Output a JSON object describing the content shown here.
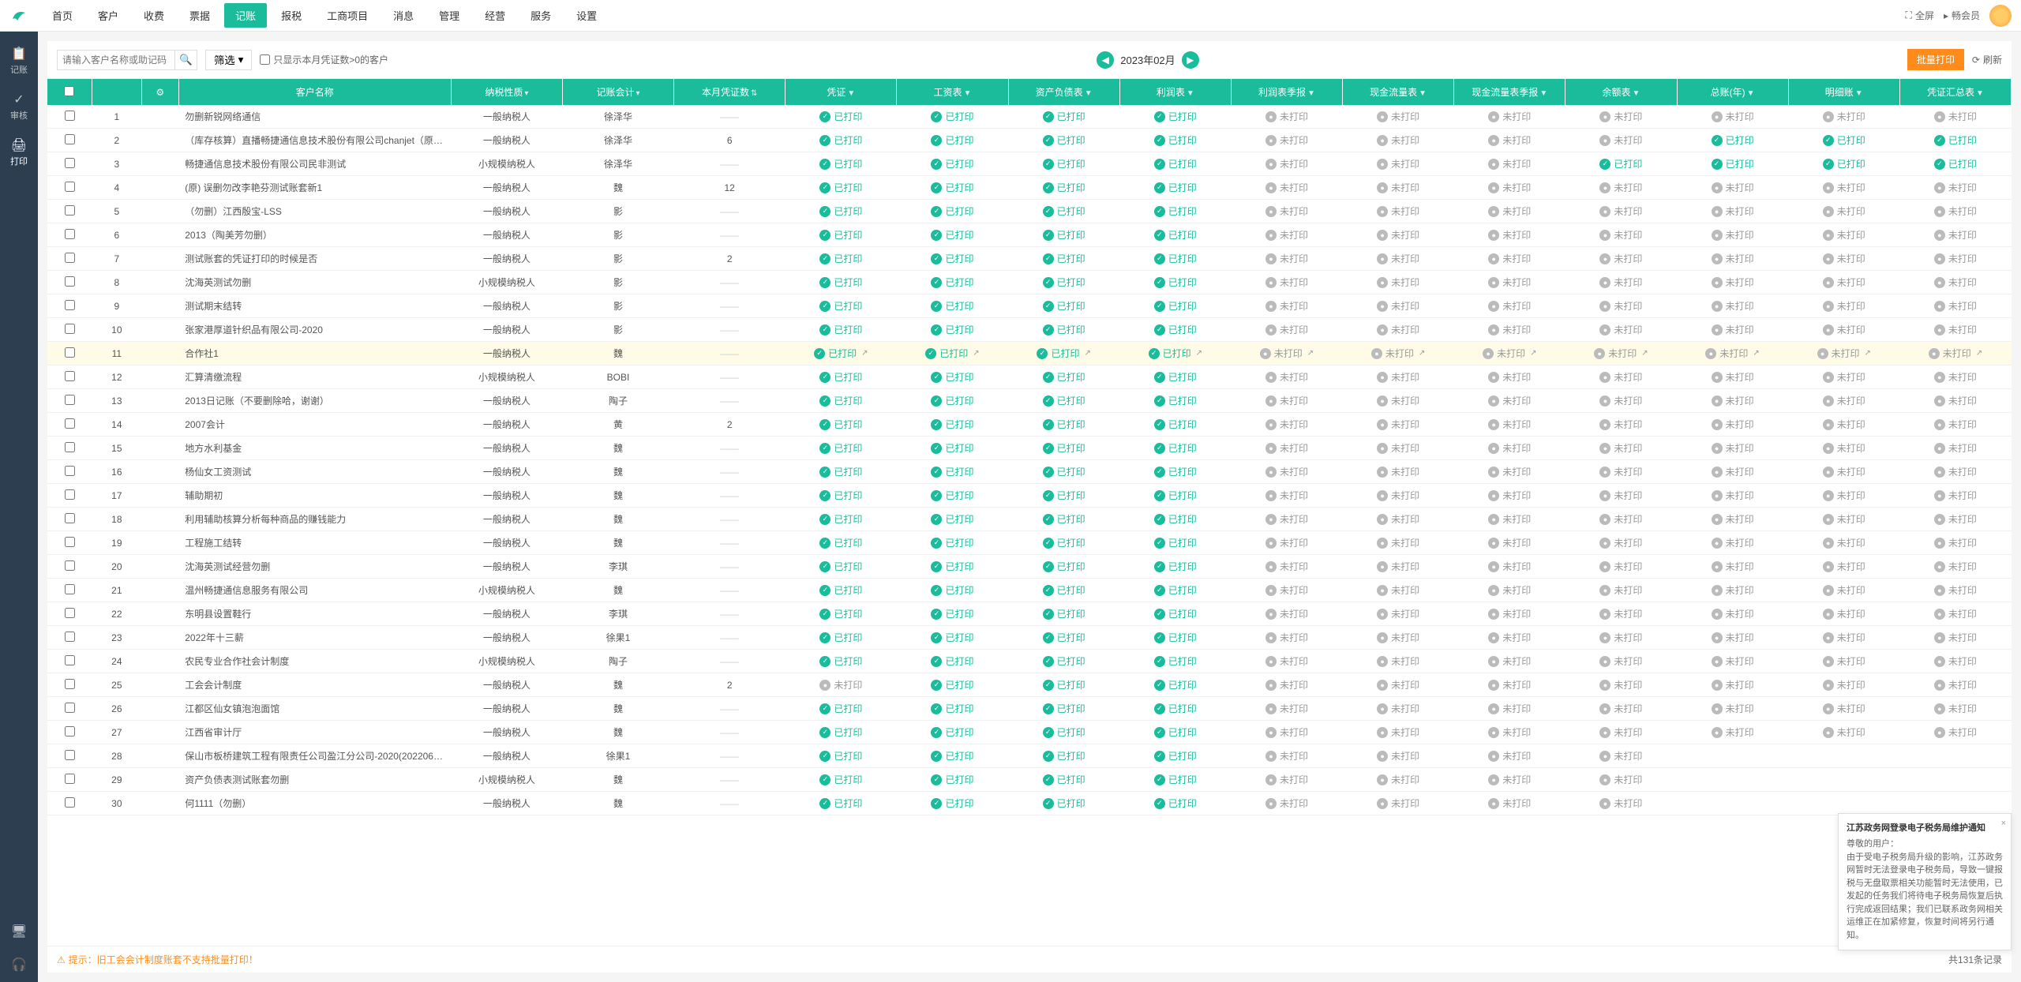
{
  "topnav": {
    "items": [
      "首页",
      "客户",
      "收费",
      "票据",
      "记账",
      "报税",
      "工商项目",
      "消息",
      "管理",
      "经营",
      "服务",
      "设置"
    ],
    "active_index": 4,
    "right": {
      "fullscreen": "全屏",
      "member": "畅会员"
    }
  },
  "sidebar": {
    "items": [
      {
        "icon": "📋",
        "label": "记账"
      },
      {
        "icon": "✓",
        "label": "审核"
      },
      {
        "icon": "🖨",
        "label": "打印"
      }
    ],
    "bottom": [
      {
        "icon": "🖥",
        "label": ""
      },
      {
        "icon": "🎧",
        "label": ""
      }
    ],
    "active_index": 2
  },
  "toolbar": {
    "search_placeholder": "请输入客户名称或助记码",
    "filter_label": "筛选",
    "checkbox_label": "只显示本月凭证数>0的客户",
    "date_label": "2023年02月",
    "batch_print": "批量打印",
    "refresh": "刷新"
  },
  "table": {
    "headers": [
      "",
      "",
      "",
      "客户名称",
      "纳税性质",
      "记账会计",
      "本月凭证数",
      "凭证",
      "工资表",
      "资产负债表",
      "利润表",
      "利润表季报",
      "现金流量表",
      "现金流量表季报",
      "余额表",
      "总账(年)",
      "明细账",
      "凭证汇总表"
    ],
    "status_labels": {
      "printed": "已打印",
      "unprinted": "未打印"
    },
    "rows": [
      {
        "idx": 1,
        "name": "勿删新锐网络通信",
        "tax": "一般纳税人",
        "acct": "徐泽华",
        "vcount": "",
        "statuses": [
          "p",
          "p",
          "p",
          "p",
          "u",
          "u",
          "u",
          "u",
          "u",
          "u",
          "u"
        ]
      },
      {
        "idx": 2,
        "name": "（库存核算）直播畅捷通信息技术股份有限公司chanjet（原…",
        "tax": "一般纳税人",
        "acct": "徐泽华",
        "vcount": "6",
        "statuses": [
          "p",
          "p",
          "p",
          "p",
          "u",
          "u",
          "u",
          "u",
          "p",
          "p",
          "p"
        ]
      },
      {
        "idx": 3,
        "name": "畅捷通信息技术股份有限公司民非测试",
        "tax": "小规模纳税人",
        "acct": "徐泽华",
        "vcount": "",
        "statuses": [
          "p",
          "p",
          "p",
          "p",
          "u",
          "u",
          "u",
          "p",
          "p",
          "p",
          "p"
        ]
      },
      {
        "idx": 4,
        "name": "(原) 误删勿改李艳芬测试账套新1",
        "tax": "一般纳税人",
        "acct": "魏",
        "vcount": "12",
        "statuses": [
          "p",
          "p",
          "p",
          "p",
          "u",
          "u",
          "u",
          "u",
          "u",
          "u",
          "u"
        ]
      },
      {
        "idx": 5,
        "name": "（勿删）江西殷宝-LSS",
        "tax": "一般纳税人",
        "acct": "影",
        "vcount": "",
        "statuses": [
          "p",
          "p",
          "p",
          "p",
          "u",
          "u",
          "u",
          "u",
          "u",
          "u",
          "u"
        ]
      },
      {
        "idx": 6,
        "name": "2013（陶美芳勿删）",
        "tax": "一般纳税人",
        "acct": "影",
        "vcount": "",
        "statuses": [
          "p",
          "p",
          "p",
          "p",
          "u",
          "u",
          "u",
          "u",
          "u",
          "u",
          "u"
        ]
      },
      {
        "idx": 7,
        "name": "测试账套的凭证打印的时候是否",
        "tax": "一般纳税人",
        "acct": "影",
        "vcount": "2",
        "statuses": [
          "p",
          "p",
          "p",
          "p",
          "u",
          "u",
          "u",
          "u",
          "u",
          "u",
          "u"
        ]
      },
      {
        "idx": 8,
        "name": "沈海英测试勿删",
        "tax": "小规模纳税人",
        "acct": "影",
        "vcount": "",
        "statuses": [
          "p",
          "p",
          "p",
          "p",
          "u",
          "u",
          "u",
          "u",
          "u",
          "u",
          "u"
        ]
      },
      {
        "idx": 9,
        "name": "测试期末结转",
        "tax": "一般纳税人",
        "acct": "影",
        "vcount": "",
        "statuses": [
          "p",
          "p",
          "p",
          "p",
          "u",
          "u",
          "u",
          "u",
          "u",
          "u",
          "u"
        ]
      },
      {
        "idx": 10,
        "name": "张家港厚道针织品有限公司-2020",
        "tax": "一般纳税人",
        "acct": "影",
        "vcount": "",
        "statuses": [
          "p",
          "p",
          "p",
          "p",
          "u",
          "u",
          "u",
          "u",
          "u",
          "u",
          "u"
        ]
      },
      {
        "idx": 11,
        "name": "合作社1",
        "tax": "一般纳税人",
        "acct": "魏",
        "vcount": "",
        "statuses": [
          "p",
          "p",
          "p",
          "p",
          "u",
          "u",
          "u",
          "u",
          "u",
          "u",
          "u"
        ],
        "highlight": true,
        "ext": true
      },
      {
        "idx": 12,
        "name": "汇算清缴流程",
        "tax": "小规模纳税人",
        "acct": "BOBI",
        "vcount": "",
        "statuses": [
          "p",
          "p",
          "p",
          "p",
          "u",
          "u",
          "u",
          "u",
          "u",
          "u",
          "u"
        ]
      },
      {
        "idx": 13,
        "name": "2013日记账（不要删除哈，谢谢）",
        "tax": "一般纳税人",
        "acct": "陶子",
        "vcount": "",
        "statuses": [
          "p",
          "p",
          "p",
          "p",
          "u",
          "u",
          "u",
          "u",
          "u",
          "u",
          "u"
        ]
      },
      {
        "idx": 14,
        "name": "2007会计",
        "tax": "一般纳税人",
        "acct": "黄",
        "vcount": "2",
        "statuses": [
          "p",
          "p",
          "p",
          "p",
          "u",
          "u",
          "u",
          "u",
          "u",
          "u",
          "u"
        ]
      },
      {
        "idx": 15,
        "name": "地方水利基金",
        "tax": "一般纳税人",
        "acct": "魏",
        "vcount": "",
        "statuses": [
          "p",
          "p",
          "p",
          "p",
          "u",
          "u",
          "u",
          "u",
          "u",
          "u",
          "u"
        ]
      },
      {
        "idx": 16,
        "name": "杨仙女工资测试",
        "tax": "一般纳税人",
        "acct": "魏",
        "vcount": "",
        "statuses": [
          "p",
          "p",
          "p",
          "p",
          "u",
          "u",
          "u",
          "u",
          "u",
          "u",
          "u"
        ]
      },
      {
        "idx": 17,
        "name": "辅助期初",
        "tax": "一般纳税人",
        "acct": "魏",
        "vcount": "",
        "statuses": [
          "p",
          "p",
          "p",
          "p",
          "u",
          "u",
          "u",
          "u",
          "u",
          "u",
          "u"
        ]
      },
      {
        "idx": 18,
        "name": "利用辅助核算分析每种商品的赚钱能力",
        "tax": "一般纳税人",
        "acct": "魏",
        "vcount": "",
        "statuses": [
          "p",
          "p",
          "p",
          "p",
          "u",
          "u",
          "u",
          "u",
          "u",
          "u",
          "u"
        ]
      },
      {
        "idx": 19,
        "name": "工程施工结转",
        "tax": "一般纳税人",
        "acct": "魏",
        "vcount": "",
        "statuses": [
          "p",
          "p",
          "p",
          "p",
          "u",
          "u",
          "u",
          "u",
          "u",
          "u",
          "u"
        ]
      },
      {
        "idx": 20,
        "name": "沈海英测试经营勿删",
        "tax": "一般纳税人",
        "acct": "李琪",
        "vcount": "",
        "statuses": [
          "p",
          "p",
          "p",
          "p",
          "u",
          "u",
          "u",
          "u",
          "u",
          "u",
          "u"
        ]
      },
      {
        "idx": 21,
        "name": "温州畅捷通信息服务有限公司",
        "tax": "小规模纳税人",
        "acct": "魏",
        "vcount": "",
        "statuses": [
          "p",
          "p",
          "p",
          "p",
          "u",
          "u",
          "u",
          "u",
          "u",
          "u",
          "u"
        ]
      },
      {
        "idx": 22,
        "name": "东明县设置鞋行",
        "tax": "一般纳税人",
        "acct": "李琪",
        "vcount": "",
        "statuses": [
          "p",
          "p",
          "p",
          "p",
          "u",
          "u",
          "u",
          "u",
          "u",
          "u",
          "u"
        ]
      },
      {
        "idx": 23,
        "name": "2022年十三薪",
        "tax": "一般纳税人",
        "acct": "徐果1",
        "vcount": "",
        "statuses": [
          "p",
          "p",
          "p",
          "p",
          "u",
          "u",
          "u",
          "u",
          "u",
          "u",
          "u"
        ]
      },
      {
        "idx": 24,
        "name": "农民专业合作社会计制度",
        "tax": "小规模纳税人",
        "acct": "陶子",
        "vcount": "",
        "statuses": [
          "p",
          "p",
          "p",
          "p",
          "u",
          "u",
          "u",
          "u",
          "u",
          "u",
          "u"
        ]
      },
      {
        "idx": 25,
        "name": "工会会计制度",
        "tax": "一般纳税人",
        "acct": "魏",
        "vcount": "2",
        "statuses": [
          "u",
          "p",
          "p",
          "p",
          "u",
          "u",
          "u",
          "u",
          "u",
          "u",
          "u"
        ]
      },
      {
        "idx": 26,
        "name": "江都区仙女镇泡泡面馆",
        "tax": "一般纳税人",
        "acct": "魏",
        "vcount": "",
        "statuses": [
          "p",
          "p",
          "p",
          "p",
          "u",
          "u",
          "u",
          "u",
          "u",
          "u",
          "u"
        ]
      },
      {
        "idx": 27,
        "name": "江西省审计厅",
        "tax": "一般纳税人",
        "acct": "魏",
        "vcount": "",
        "statuses": [
          "p",
          "p",
          "p",
          "p",
          "u",
          "u",
          "u",
          "u",
          "u",
          "u",
          "u"
        ]
      },
      {
        "idx": 28,
        "name": "保山市板桥建筑工程有限责任公司盈江分公司-2020(2022061…",
        "tax": "一般纳税人",
        "acct": "徐果1",
        "vcount": "",
        "statuses": [
          "p",
          "p",
          "p",
          "p",
          "u",
          "u",
          "u",
          "u",
          "",
          "",
          ""
        ]
      },
      {
        "idx": 29,
        "name": "资产负债表测试账套勿删",
        "tax": "小规模纳税人",
        "acct": "魏",
        "vcount": "",
        "statuses": [
          "p",
          "p",
          "p",
          "p",
          "u",
          "u",
          "u",
          "u",
          "",
          "",
          ""
        ]
      },
      {
        "idx": 30,
        "name": "何1111（勿删）",
        "tax": "一般纳税人",
        "acct": "魏",
        "vcount": "",
        "statuses": [
          "p",
          "p",
          "p",
          "p",
          "u",
          "u",
          "u",
          "u",
          "",
          "",
          ""
        ]
      }
    ]
  },
  "footer": {
    "warning": "提示：旧工会会计制度账套不支持批量打印！",
    "count_label": "共131条记录"
  },
  "notification": {
    "title": "江苏政务网登录电子税务局维护通知",
    "greeting": "尊敬的用户：",
    "body": "由于受电子税务局升级的影响，江苏政务网暂时无法登录电子税务局，导致一键报税与无盘取票相关功能暂时无法使用，已发起的任务我们将待电子税务局恢复后执行完成返回结果；我们已联系政务网相关运维正在加紧修复，恢复时间将另行通知。"
  }
}
